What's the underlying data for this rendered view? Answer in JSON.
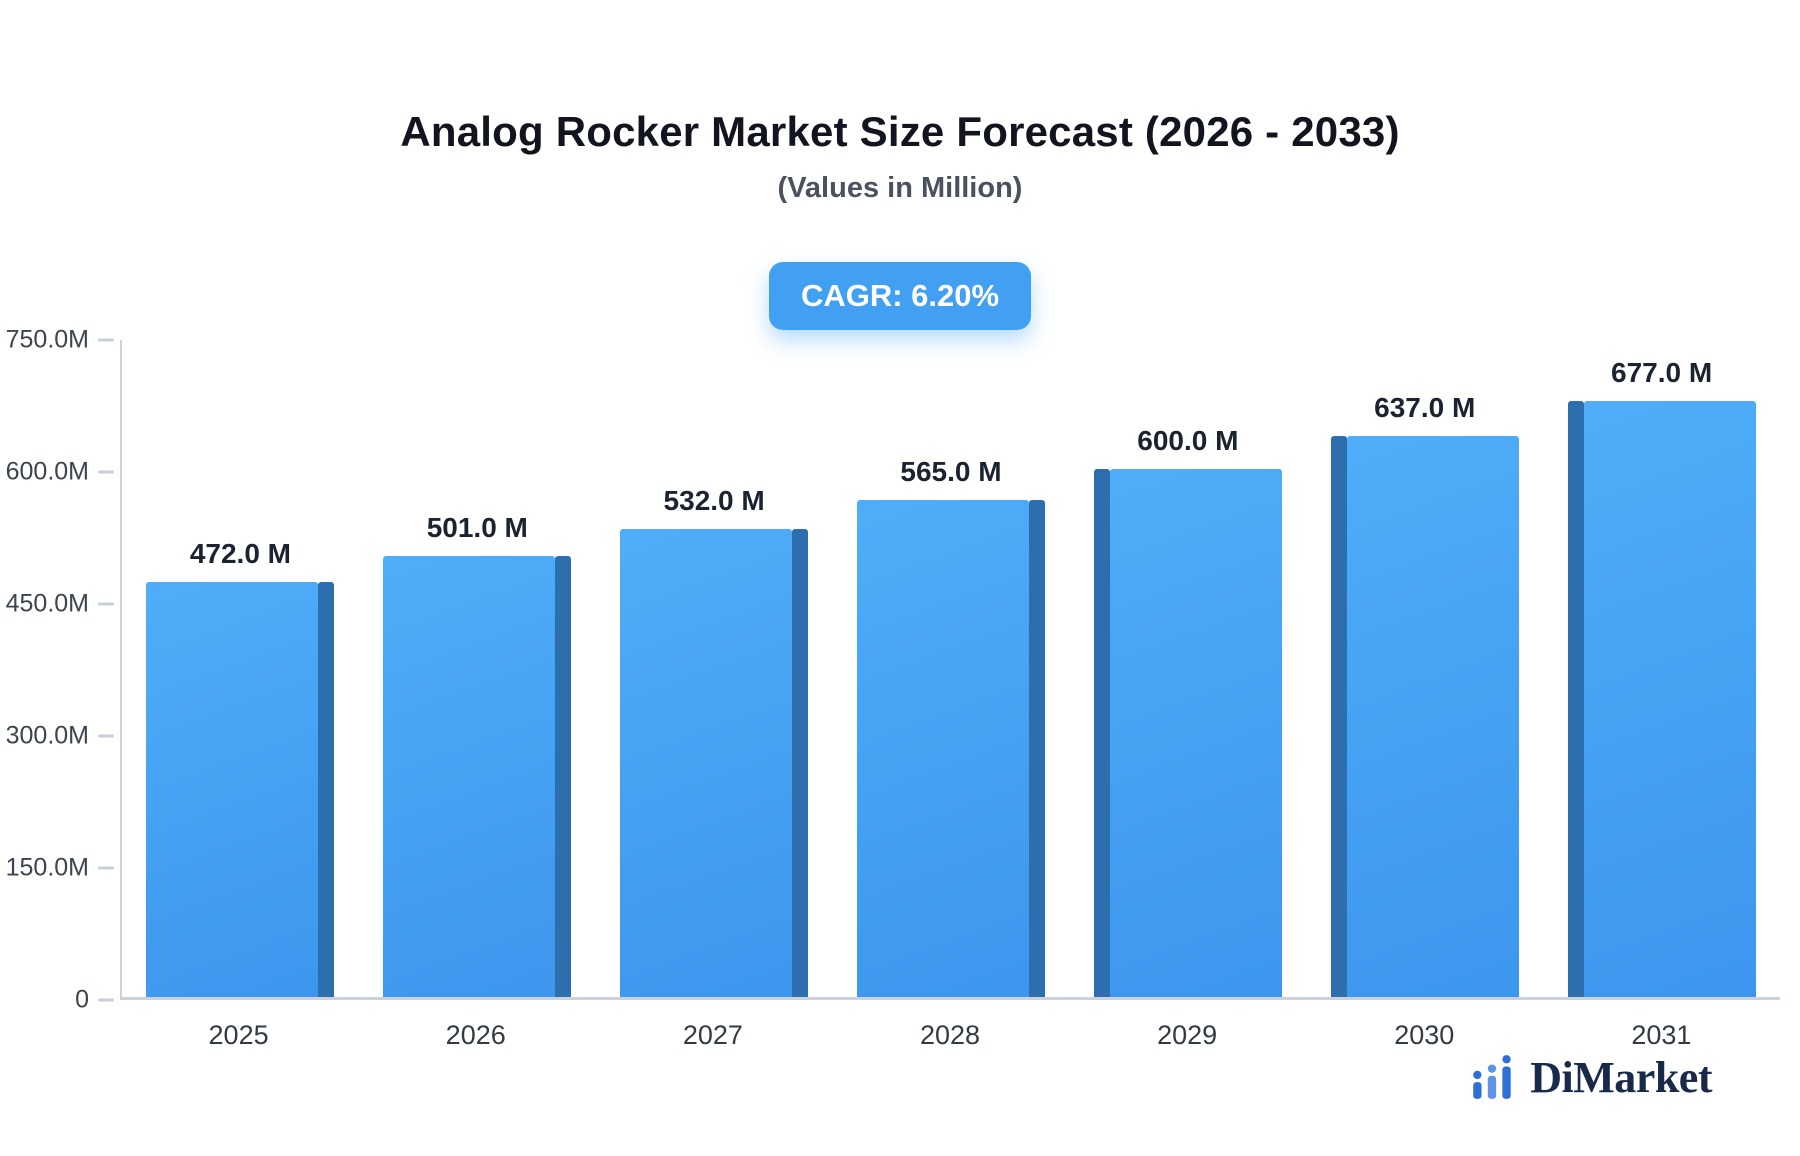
{
  "header": {
    "title": "Analog Rocker Market Size Forecast (2026 - 2033)",
    "subtitle": "(Values in Million)",
    "badge": "CAGR: 6.20%"
  },
  "footer": {
    "brand": "DiMarket"
  },
  "chart_data": {
    "type": "bar",
    "title": "Analog Rocker Market Size Forecast (2026 - 2033)",
    "subtitle": "(Values in Million)",
    "cagr": "6.20%",
    "unit": "Million",
    "categories": [
      "2025",
      "2026",
      "2027",
      "2028",
      "2029",
      "2030",
      "2031"
    ],
    "values": [
      472,
      501,
      532,
      565,
      600,
      637,
      677
    ],
    "value_labels": [
      "472.0 M",
      "501.0 M",
      "532.0 M",
      "565.0 M",
      "600.0 M",
      "637.0 M",
      "677.0 M"
    ],
    "ylim": [
      0,
      750
    ],
    "yticks": [
      {
        "value": 750,
        "label": "750.0M"
      },
      {
        "value": 600,
        "label": "600.0M"
      },
      {
        "value": 450,
        "label": "450.0M"
      },
      {
        "value": 300,
        "label": "300.0M"
      },
      {
        "value": 150,
        "label": "150.0M"
      },
      {
        "value": 0,
        "label": "0"
      }
    ],
    "grid": false,
    "legend": "none",
    "colors": {
      "bar_top": "#4fadf8",
      "bar_bottom": "#3c96ee",
      "bar_side": "#2d6fae",
      "badge_bg": "#41a0f2",
      "axis_line": "#ccd2da",
      "logo_blue": "#2e6fd6",
      "logo_navy": "#19294a"
    }
  }
}
